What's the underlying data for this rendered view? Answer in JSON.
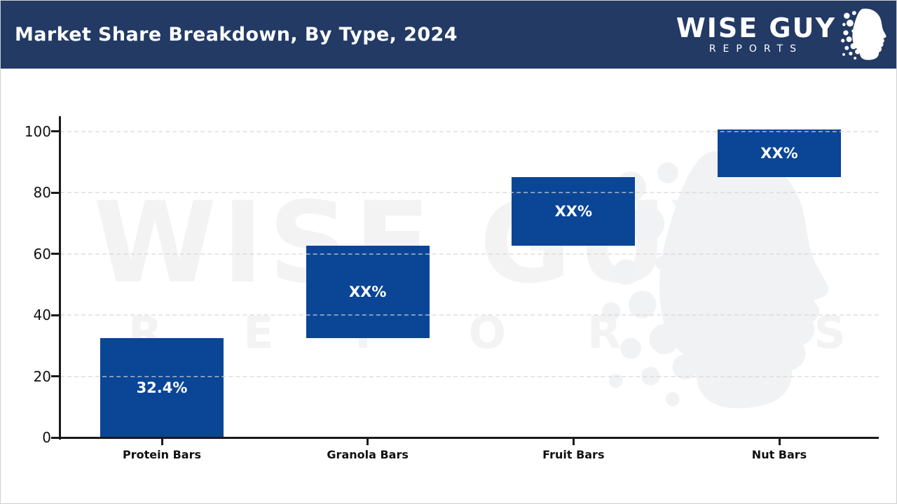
{
  "header": {
    "title": "Market Share Breakdown, By Type, 2024",
    "logo": {
      "line1": "WISE GUY",
      "line2": "REPORTS"
    }
  },
  "watermark": {
    "line1": "WISE GUY",
    "line2": "R E P O R T S"
  },
  "chart_data": {
    "type": "bar",
    "subtype": "waterfall",
    "title": "Market Share Breakdown, By Type, 2024",
    "categories": [
      "Protein Bars",
      "Granola Bars",
      "Fruit Bars",
      "Nut Bars"
    ],
    "segments": [
      {
        "category": "Protein Bars",
        "start": 0,
        "end": 32.4,
        "label": "32.4%"
      },
      {
        "category": "Granola Bars",
        "start": 32.4,
        "end": 62.7,
        "label": "XX%"
      },
      {
        "category": "Fruit Bars",
        "start": 62.7,
        "end": 85.1,
        "label": "XX%"
      },
      {
        "category": "Nut Bars",
        "start": 85.1,
        "end": 100.5,
        "label": "XX%"
      }
    ],
    "yticks": [
      0,
      20,
      40,
      60,
      80,
      100
    ],
    "ylim": [
      0,
      105
    ],
    "xlabel": "",
    "ylabel": "",
    "grid": "horizontal-dashed",
    "legend": "none",
    "bar_color": "#0A4596",
    "bar_label_color": "#FFFFFF",
    "axis_color": "#1A1A1A",
    "grid_color": "#D5D5D5"
  },
  "colors": {
    "header_bg": "#223A64",
    "page_bg": "#FFFFFF",
    "watermark": "#F2F3F5",
    "border": "#CFCFCF"
  }
}
